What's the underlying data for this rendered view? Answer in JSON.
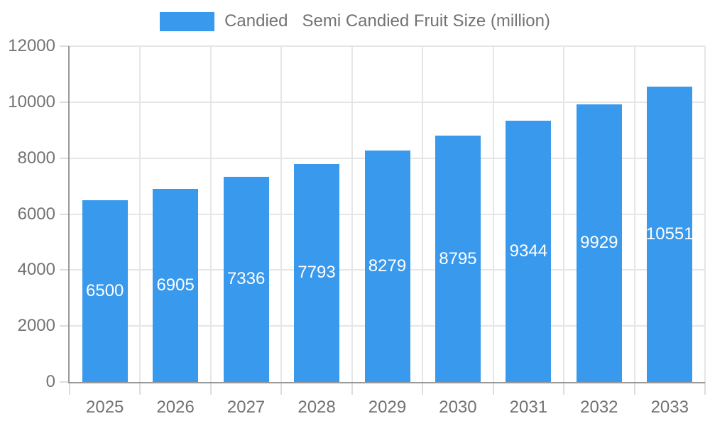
{
  "legend": {
    "label": "Candied   Semi Candied Fruit Size (million)",
    "swatch_color": "#3999EC"
  },
  "chart_data": {
    "type": "bar",
    "title": "",
    "categories": [
      "2025",
      "2026",
      "2027",
      "2028",
      "2029",
      "2030",
      "2031",
      "2032",
      "2033"
    ],
    "series": [
      {
        "name": "Candied   Semi Candied Fruit Size (million)",
        "color": "#3999EC",
        "values": [
          6500,
          6905,
          7336,
          7793,
          8279,
          8795,
          9344,
          9929,
          10551
        ]
      }
    ],
    "value_labels": {
      "shown": true,
      "position": "inside-center",
      "color": "#FFFFFF"
    },
    "xlabel": "",
    "ylabel": "",
    "ylim": [
      0,
      12000
    ],
    "yticks": [
      0,
      2000,
      4000,
      6000,
      8000,
      10000,
      12000
    ],
    "grid": true,
    "legend_position": "top",
    "colors": {
      "background": "#FFFFFF",
      "bar": "#3999EC",
      "grid_line": "#E6E6E6",
      "axis_line": "#999999",
      "tick_mark": "#DDDDDD",
      "tick_label": "#737373",
      "value_label": "#FFFFFF"
    }
  }
}
